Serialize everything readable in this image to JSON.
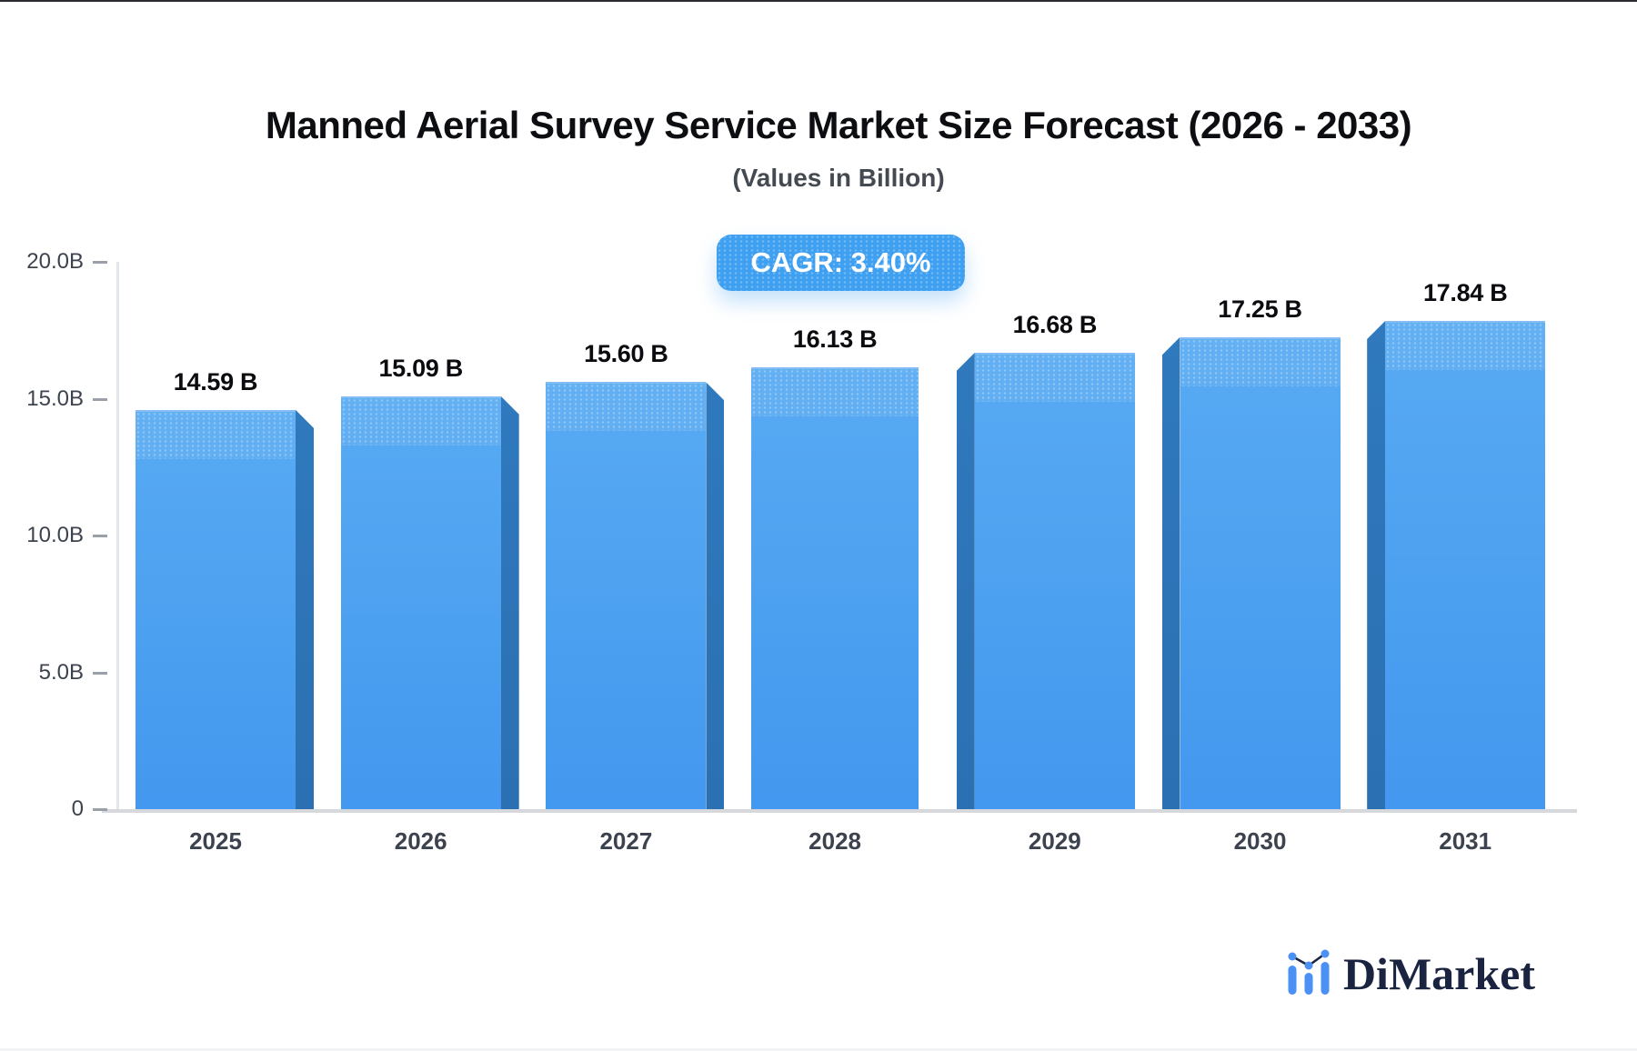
{
  "header": {
    "title": "Manned Aerial Survey Service Market Size Forecast (2026 - 2033)",
    "subtitle": "(Values in Billion)",
    "cagr_badge": "CAGR: 3.40%"
  },
  "chart_data": {
    "type": "bar",
    "title": "Manned Aerial Survey Service Market Size Forecast (2026 - 2033)",
    "subtitle": "(Values in Billion)",
    "categories": [
      "2025",
      "2026",
      "2027",
      "2028",
      "2029",
      "2030",
      "2031"
    ],
    "values": [
      14.59,
      15.09,
      15.6,
      16.13,
      16.68,
      17.25,
      17.84
    ],
    "value_labels": [
      "14.59 B",
      "15.09 B",
      "15.60 B",
      "16.13 B",
      "16.68 B",
      "17.25 B",
      "17.84 B"
    ],
    "annotation": "CAGR: 3.40%",
    "ylim": [
      0,
      20
    ],
    "yticks": {
      "values": [
        0,
        5,
        10,
        15,
        20
      ],
      "labels": [
        "0",
        "5.0B",
        "10.0B",
        "15.0B",
        "20.0B"
      ]
    },
    "grid": false,
    "legend": false,
    "style": "3d-bars, side face toward center, speckled top cap"
  },
  "logo": {
    "brand": "DiMarket",
    "icon": "bar-chart-logo-icon"
  },
  "colors": {
    "bar_top": "#58aaf3",
    "bar_bottom": "#4398ef",
    "bar_side": "#2d74b7",
    "badge_bg": "#3f9ff1",
    "badge_text": "#ffffff",
    "axis_line": "#e2e5e9",
    "baseline": "#d7d8dc",
    "tick_text": "#3d434e",
    "value_text": "#0b0c10",
    "title_text": "#0d0e12",
    "subtitle_text": "#454a52",
    "logo_accent": "#4a90f5",
    "logo_text": "#1a2440"
  }
}
